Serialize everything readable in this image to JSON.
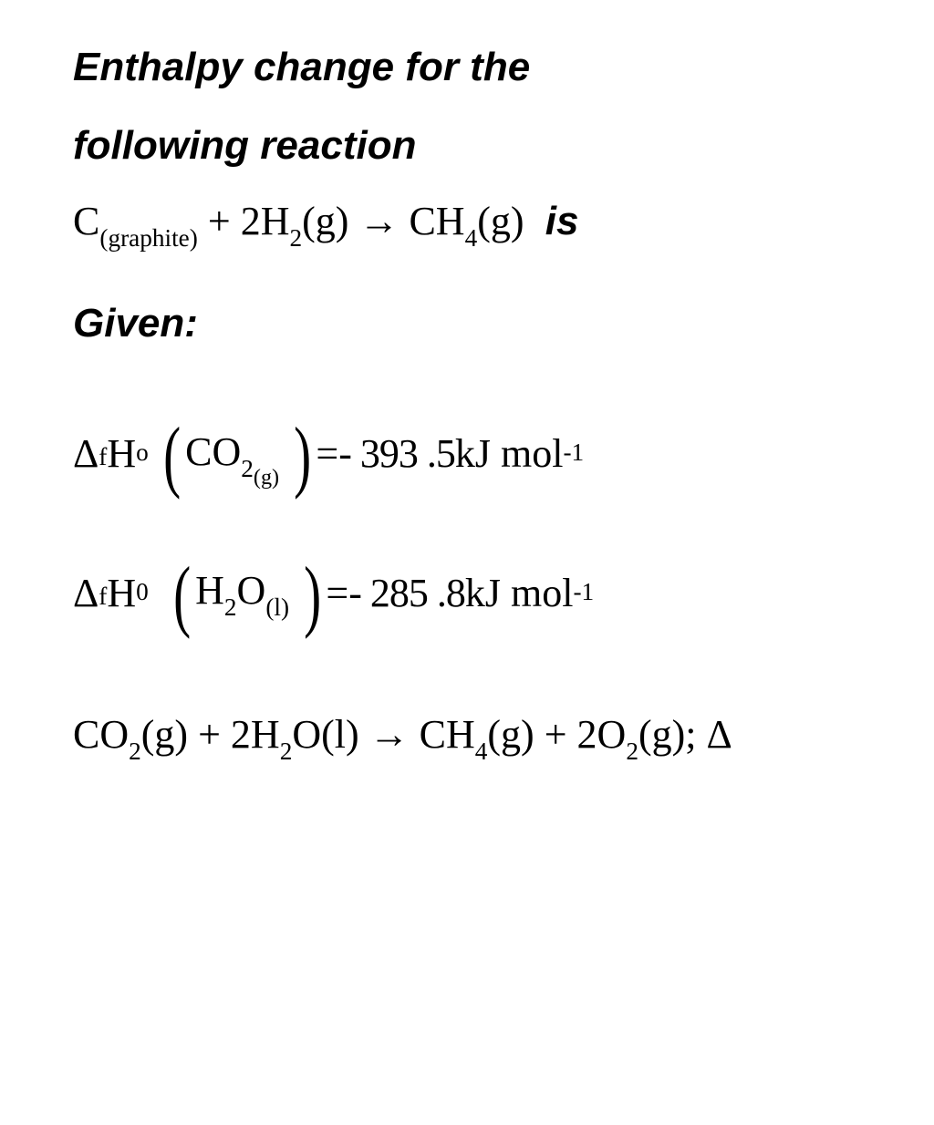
{
  "colors": {
    "text": "#000000",
    "background": "#ffffff"
  },
  "typography": {
    "heading_font": "Arial, Helvetica, sans-serif",
    "heading_weight": 900,
    "heading_style": "italic",
    "heading_size_pt": 33,
    "body_font": "Georgia, Times New Roman, serif",
    "body_size_pt": 33,
    "subscript_ratio": 0.62
  },
  "heading": {
    "line1": "Enthalpy change for the",
    "line2": "following reaction",
    "trailing_is": "is"
  },
  "reaction_target": {
    "C": "C",
    "graphite_sub_open": "(",
    "graphite_sub_text": "graphite",
    "graphite_sub_close": ")",
    "plus": " + ",
    "coef_2": "2",
    "H": "H",
    "two": "2",
    "g_paren": "(g)",
    "arrow": " → ",
    "CH": "CH",
    "four": "4"
  },
  "given_label": "Given:",
  "delta": "Δ",
  "sub_f": "f",
  "H_sym": "H",
  "sup_o_ital": "o",
  "sup_0": "0",
  "eq1": {
    "species_main": "CO",
    "species_sub1": "2",
    "phase_sub": "(g)",
    "equals": " = ",
    "value": "- 393 .5",
    "unit": " kJ mol",
    "unit_sup": "-1"
  },
  "eq2": {
    "species_main": "H",
    "species_sub1": "2",
    "species_O": "O",
    "phase_sub": "(l)",
    "equals": " = ",
    "value": "- 285 .8",
    "unit": " kJ mol",
    "unit_sup": "-1"
  },
  "eq3": {
    "r1": "CO",
    "r1_sub": "2",
    "r1_phase": "(g)",
    "plus": " + ",
    "r2_coef": "2",
    "r2": "H",
    "r2_sub": "2",
    "r2_O": "O",
    "r2_phase": "(l)",
    "arrow": " → ",
    "p1": "CH",
    "p1_sub": "4",
    "p1_phase": "(g)",
    "p2_coef": "2",
    "p2": "O",
    "p2_sub": "2",
    "p2_phase": "(g)",
    "tail": "; Δ"
  }
}
